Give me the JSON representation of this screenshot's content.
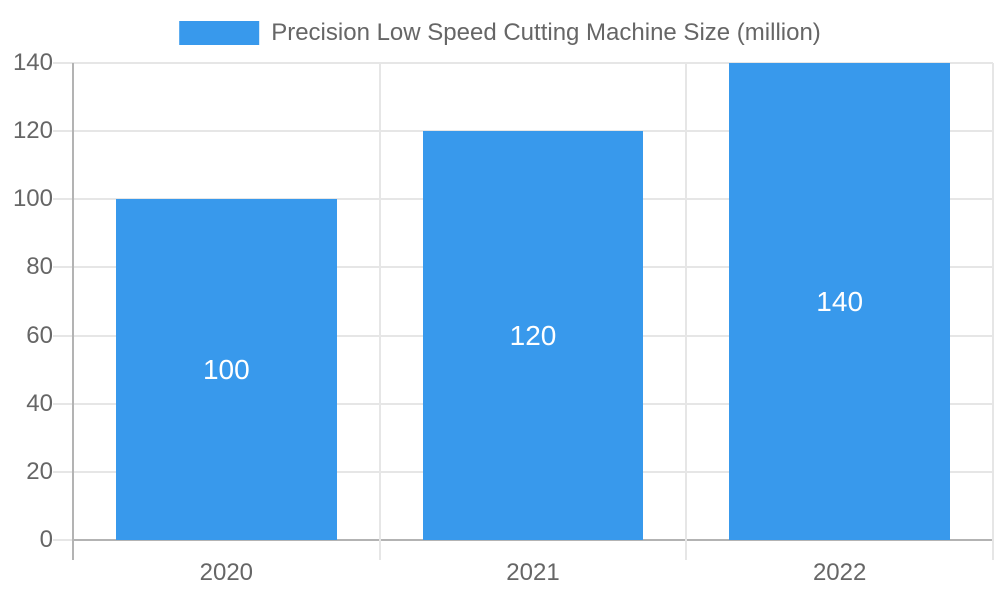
{
  "chart_data": {
    "type": "bar",
    "title": "",
    "xlabel": "",
    "ylabel": "",
    "legend_position": "top-center",
    "categories": [
      "2020",
      "2021",
      "2022"
    ],
    "series": [
      {
        "name": "Precision Low Speed Cutting Machine Size (million)",
        "values": [
          100,
          120,
          140
        ]
      }
    ],
    "data_labels": [
      "100",
      "120",
      "140"
    ],
    "yticks": [
      0,
      20,
      40,
      60,
      80,
      100,
      120,
      140
    ],
    "ytick_labels": [
      "0",
      "20",
      "40",
      "60",
      "80",
      "100",
      "120",
      "140"
    ],
    "ylim": [
      0,
      140
    ],
    "grid": true,
    "colors": {
      "bar": "#3899EC",
      "grid_line": "#E6E6E6",
      "zero_line": "#B3B3B3",
      "axis_text": "#666666",
      "legend_text": "#666666",
      "data_label": "#FFFFFF",
      "background": "#FFFFFF"
    }
  }
}
